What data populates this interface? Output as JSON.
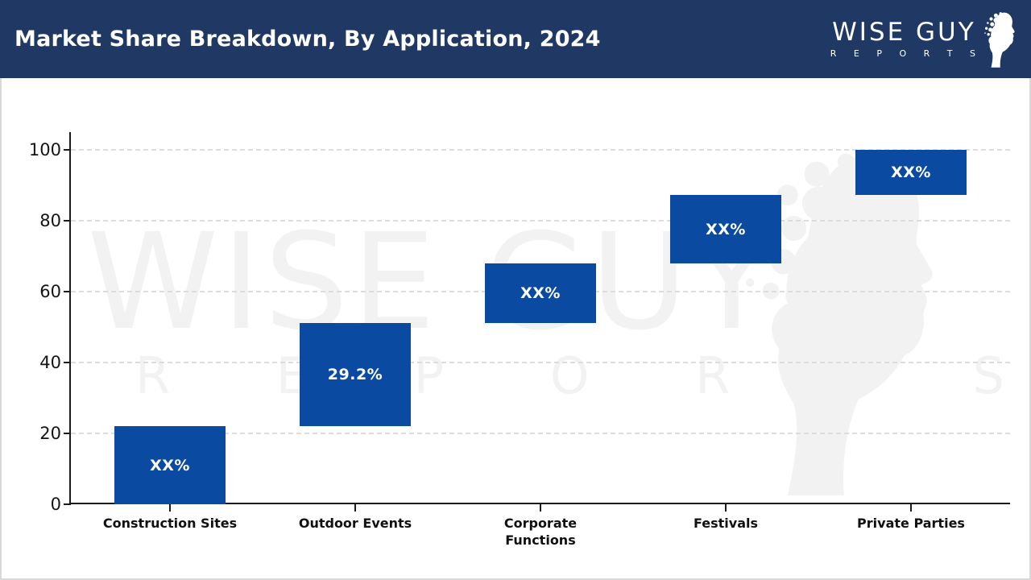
{
  "header": {
    "title": "Market Share Breakdown, By Application, 2024",
    "logo": {
      "name_top": "WISE GUY",
      "name_bottom": "R E P O R T S"
    }
  },
  "watermark": {
    "text_top": "WISE GUY",
    "text_bottom": "R E P O R T S"
  },
  "chart_data": {
    "type": "bar",
    "variant": "floating-range-bars (stacked waterfall of market share)",
    "title": "Market Share Breakdown, By Application, 2024",
    "categories": [
      "Construction Sites",
      "Outdoor Events",
      "Corporate Functions",
      "Festivals",
      "Private Parties"
    ],
    "xtick_labels": [
      "Construction Sites",
      "Outdoor Events",
      "Corporate\nFunctions",
      "Festivals",
      "Private Parties"
    ],
    "series": [
      {
        "name": "Market share (%)",
        "ranges": [
          [
            0,
            22
          ],
          [
            22,
            51.2
          ],
          [
            51.2,
            68
          ],
          [
            68,
            87.2
          ],
          [
            87.2,
            100
          ]
        ],
        "bar_labels": [
          "XX%",
          "29.2%",
          "XX%",
          "XX%",
          "XX%"
        ]
      }
    ],
    "xlabel": "",
    "ylabel": "",
    "yticks": [
      0,
      20,
      40,
      60,
      80,
      100
    ],
    "ylim": [
      0,
      105
    ],
    "grid": "horizontal-dashed",
    "legend": "none",
    "colors": {
      "bar": "#0a4aa0",
      "header_bg": "#1f3864",
      "grid_line": "#dcdcdc",
      "axis": "#1a1a1a",
      "bar_label_text": "#ffffff",
      "watermark": "#f2f2f2"
    }
  }
}
